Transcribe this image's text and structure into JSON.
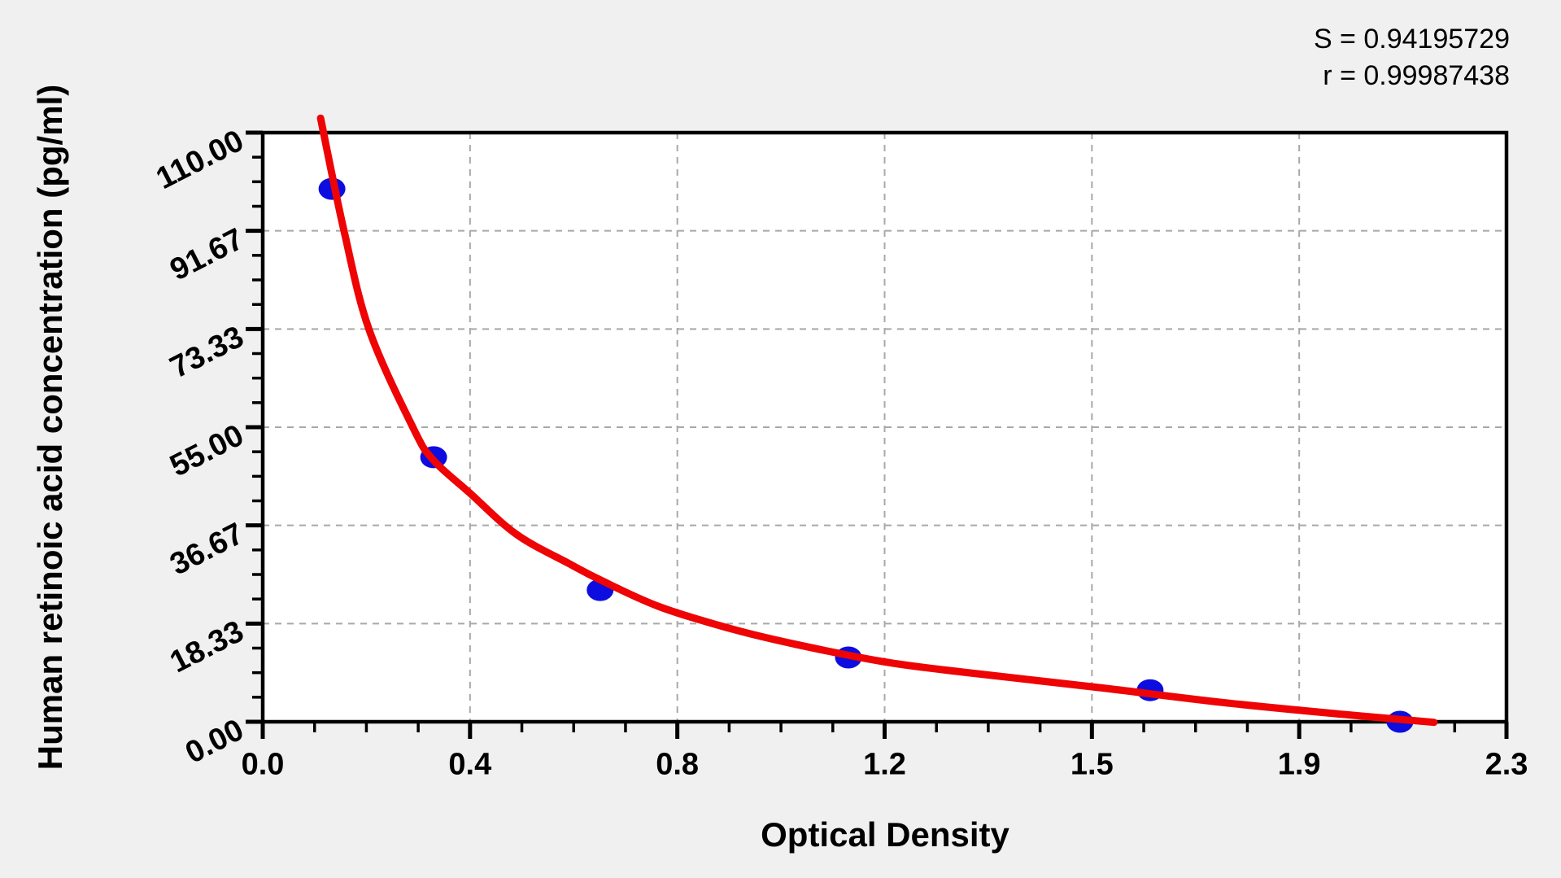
{
  "page": {
    "background_color": "#f0f0f0",
    "plot_background_color": "#ffffff"
  },
  "annotation": {
    "s_value": "S = 0.94195729",
    "r_value": "r = 0.99987438"
  },
  "chart_data": {
    "type": "scatter",
    "title": "",
    "xlabel": "Optical Density",
    "ylabel": "Human retinoic acid concentration (pg/ml)",
    "xlim": [
      0,
      2.3
    ],
    "ylim": [
      0,
      110
    ],
    "x_tick_labels": [
      "0.0",
      "0.4",
      "0.8",
      "1.2",
      "1.5",
      "1.9",
      "2.3"
    ],
    "y_tick_labels": [
      "0.00",
      "18.33",
      "36.67",
      "55.00",
      "73.33",
      "91.67",
      "110.00"
    ],
    "minor_ticks_per_interval": 3,
    "grid": true,
    "grid_style": "dashed",
    "legend_position": "none",
    "colors": {
      "frame": "#000000",
      "grid": "#a8a8a8",
      "curve": "#ee0404",
      "marker": "#0d0de0",
      "text": "#000000"
    },
    "series": [
      {
        "name": "standard-points",
        "type": "scatter",
        "points": [
          [
            0.128,
            99.5
          ],
          [
            0.316,
            49.4
          ],
          [
            0.624,
            24.6
          ],
          [
            1.083,
            12.0
          ],
          [
            1.641,
            5.9
          ],
          [
            2.103,
            0.0
          ]
        ]
      },
      {
        "name": "fitted-curve",
        "type": "line",
        "points": [
          [
            0.107,
            112.7
          ],
          [
            0.15,
            91.8
          ],
          [
            0.197,
            73.1
          ],
          [
            0.28,
            54.5
          ],
          [
            0.316,
            48.8
          ],
          [
            0.382,
            42.8
          ],
          [
            0.469,
            35.0
          ],
          [
            0.567,
            29.5
          ],
          [
            0.624,
            26.5
          ],
          [
            0.733,
            21.5
          ],
          [
            0.868,
            17.3
          ],
          [
            0.988,
            14.4
          ],
          [
            1.149,
            11.2
          ],
          [
            1.3,
            9.2
          ],
          [
            1.545,
            6.4
          ],
          [
            1.775,
            3.6
          ],
          [
            1.996,
            1.4
          ],
          [
            2.166,
            -0.1
          ]
        ]
      }
    ]
  }
}
